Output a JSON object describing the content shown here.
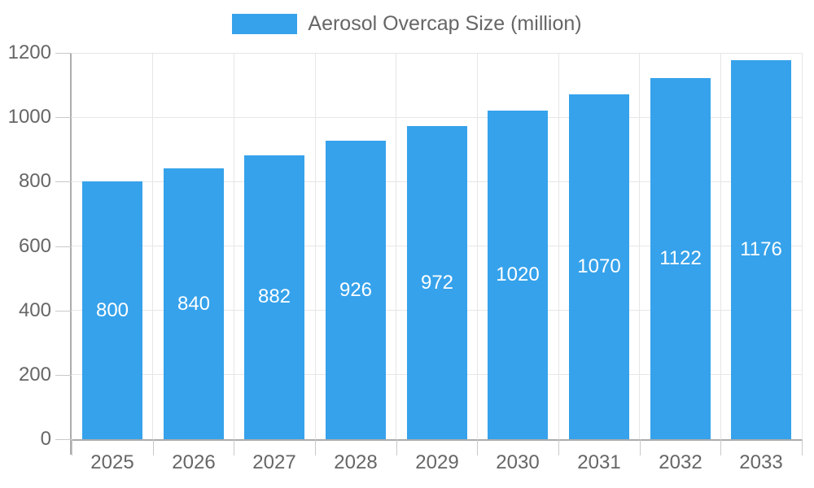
{
  "legend": {
    "label": "Aerosol Overcap Size (million)"
  },
  "chart_data": {
    "type": "bar",
    "title": "Aerosol Overcap Size (million)",
    "categories": [
      "2025",
      "2026",
      "2027",
      "2028",
      "2029",
      "2030",
      "2031",
      "2032",
      "2033"
    ],
    "values": [
      800,
      840,
      882,
      926,
      972,
      1020,
      1070,
      1122,
      1176
    ],
    "xlabel": "",
    "ylabel": "",
    "ylim": [
      0,
      1200
    ],
    "yticks": [
      0,
      200,
      400,
      600,
      800,
      1000,
      1200
    ],
    "grid": true,
    "legend_position": "top",
    "data_labels": "inside-center",
    "colors": {
      "bar": "#36A2EB",
      "bar_label_text": "#ffffff",
      "axis_text": "#666666",
      "grid_line": "#E6E6E6",
      "axis_line": "#ACACAC",
      "background": "#ffffff"
    }
  }
}
